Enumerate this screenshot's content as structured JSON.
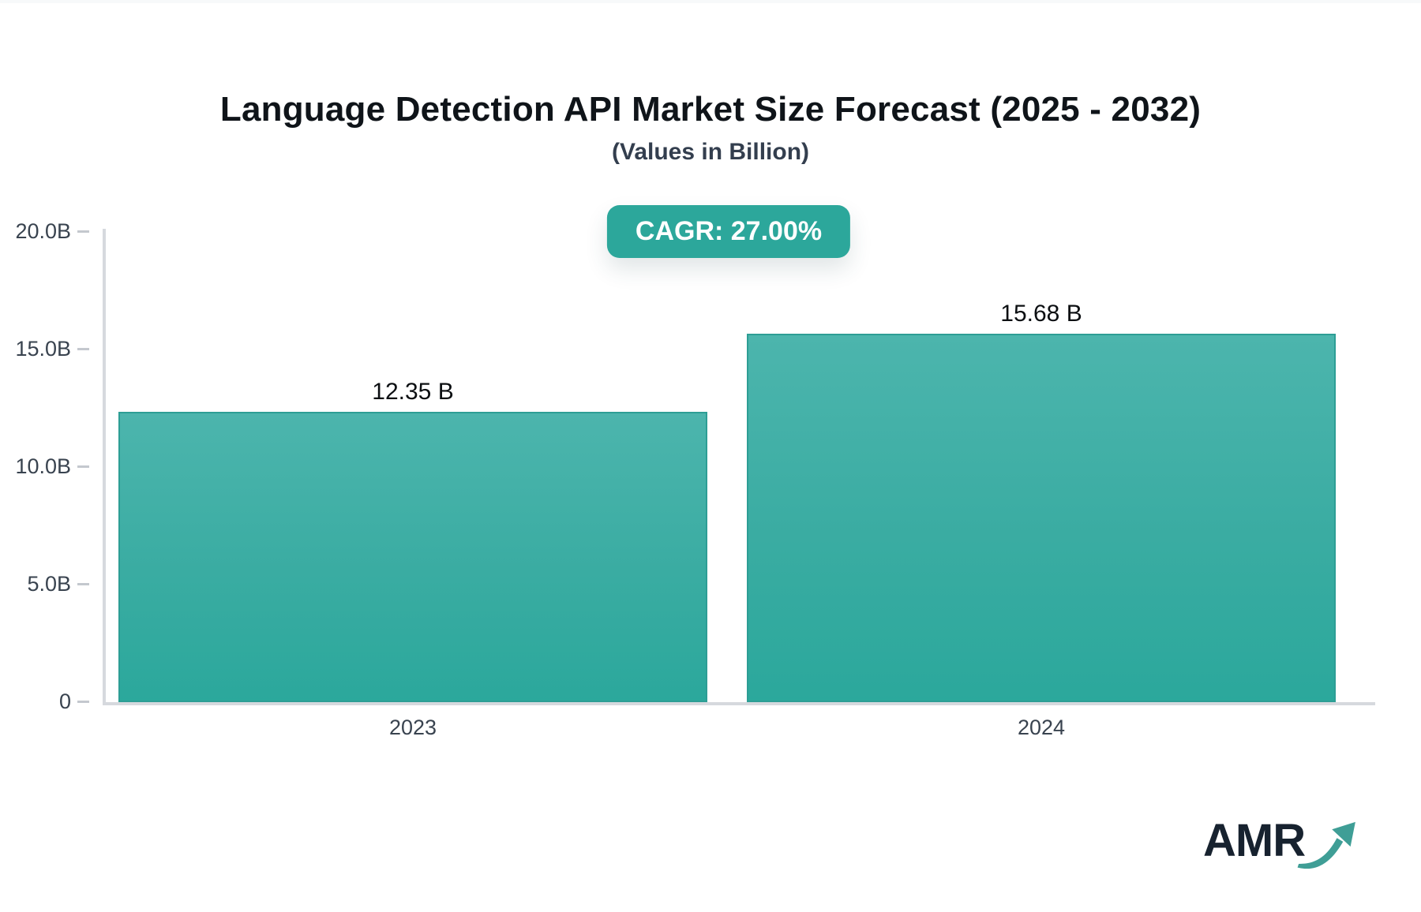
{
  "chart_data": {
    "type": "bar",
    "title": "Language Detection API Market Size Forecast (2025 - 2032)",
    "subtitle": "(Values in Billion)",
    "cagr_label": "CAGR: 27.00%",
    "categories": [
      "2023",
      "2024"
    ],
    "values": [
      12.35,
      15.68
    ],
    "value_labels": [
      "12.35 B",
      "15.68 B"
    ],
    "y_ticks": [
      "20.0B",
      "15.0B",
      "10.0B",
      "5.0B",
      "0"
    ],
    "ylim": [
      0,
      20
    ],
    "xlabel": "",
    "ylabel": "",
    "grid": false,
    "legend": "none",
    "colors": {
      "bar_gradient_top": "#4cb5ad",
      "bar_gradient_bottom": "#2ba89c",
      "bar_border": "#2d9e95",
      "badge_background": "#2ca79b",
      "badge_text": "#ffffff",
      "axis_line": "#d6d9de",
      "tick_label": "#39434f",
      "title_text": "#0f1419",
      "value_label": "#0c0f12",
      "logo_text": "#17222f",
      "logo_arrow": "#3f9e96"
    }
  },
  "logo": {
    "text": "AMR"
  }
}
